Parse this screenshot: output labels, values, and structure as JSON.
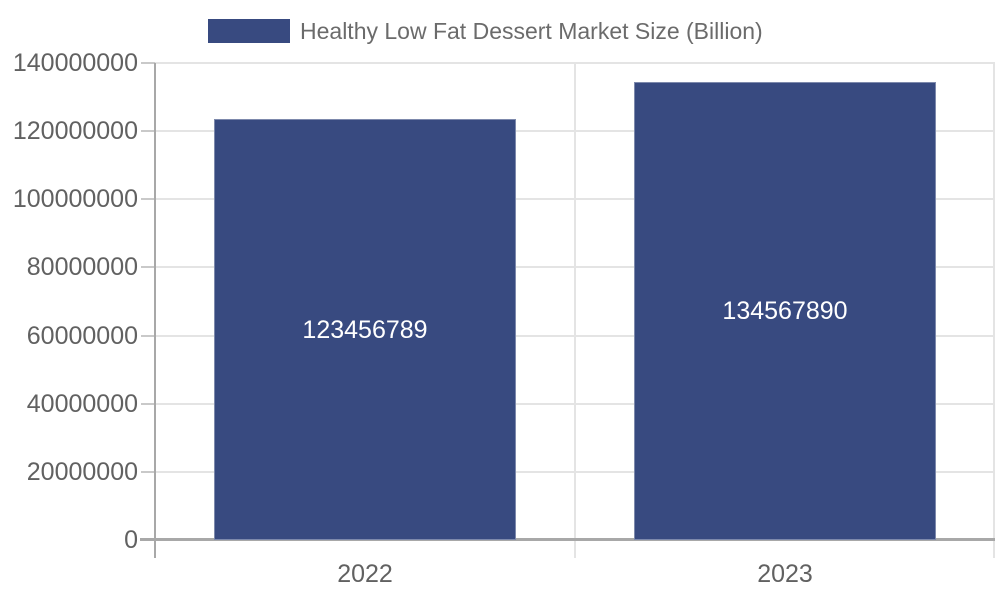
{
  "chart_data": {
    "type": "bar",
    "title": "Healthy Low Fat Dessert Market Size (Billion)",
    "categories": [
      "2022",
      "2023"
    ],
    "values": [
      123456789,
      134567890
    ],
    "bar_labels": [
      "123456789",
      "134567890"
    ],
    "ylim": [
      0,
      140000000
    ],
    "yticks": [
      0,
      20000000,
      40000000,
      60000000,
      80000000,
      100000000,
      120000000,
      140000000
    ],
    "ytick_labels": [
      "0",
      "20000000",
      "40000000",
      "60000000",
      "80000000",
      "100000000",
      "120000000",
      "140000000"
    ],
    "xlabel": "",
    "ylabel": "",
    "grid": "horizontal gridlines on, vertical category-boundary lines on",
    "legend_position": "top-left"
  },
  "colors": {
    "bar": "#384a80",
    "bar_label": "#ffffff",
    "grid": "#e4e4e4",
    "axis": "#a8a8a8",
    "tick": "#c9c9c9",
    "tick_label": "#616161",
    "title": "#6b6b6b",
    "background": "#ffffff"
  }
}
